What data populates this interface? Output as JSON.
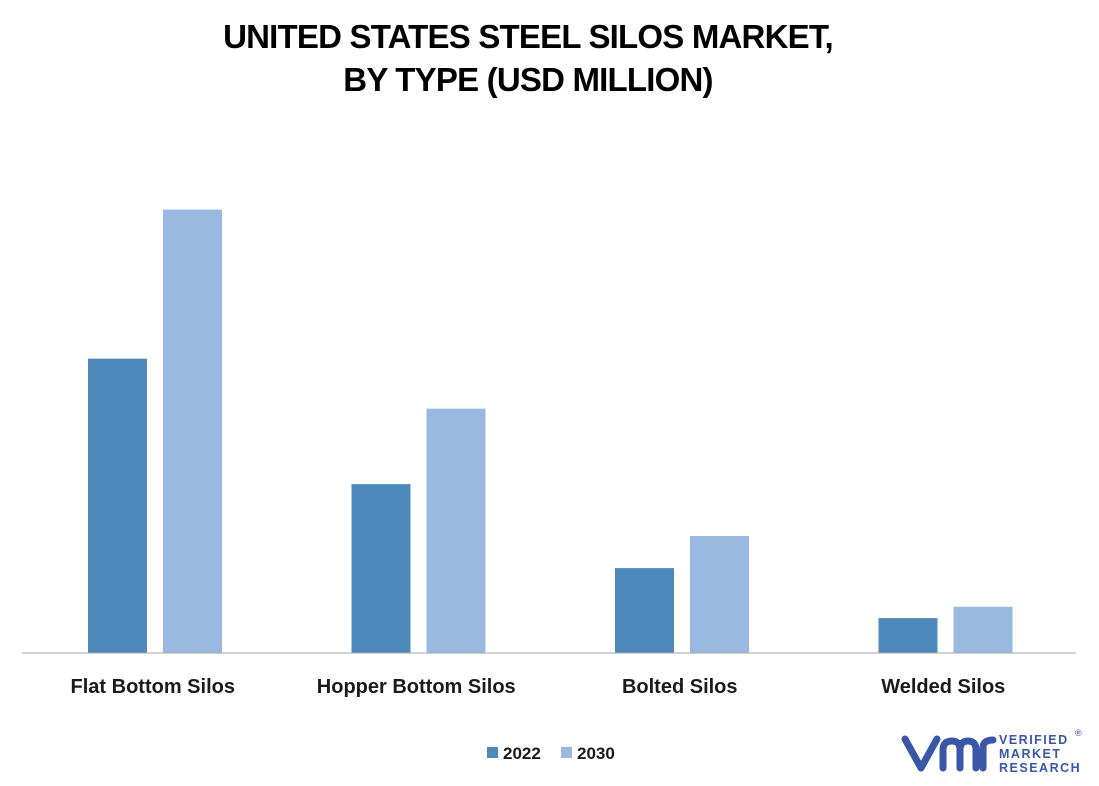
{
  "chart_data": {
    "type": "bar",
    "title_lines": [
      "UNITED STATES STEEL SILOS MARKET,",
      "BY TYPE (USD MILLION)"
    ],
    "categories": [
      "Flat Bottom Silos",
      "Hopper Bottom Silos",
      "Bolted Silos",
      "Welded Silos"
    ],
    "series": [
      {
        "name": "2022",
        "color": "#4f88bb",
        "values": [
          312,
          179,
          90,
          37
        ]
      },
      {
        "name": "2030",
        "color": "#9ab9e0",
        "values": [
          470,
          259,
          124,
          49
        ]
      }
    ],
    "ylim": [
      0,
      530
    ],
    "grid": false,
    "legend_position": "bottom-center",
    "xlabel": "",
    "ylabel": ""
  },
  "logo": {
    "mark": "vmr-logo-icon",
    "lines": [
      "VERIFIED",
      "MARKET",
      "RESEARCH"
    ],
    "registered": "®",
    "color": "#3a56a6"
  }
}
